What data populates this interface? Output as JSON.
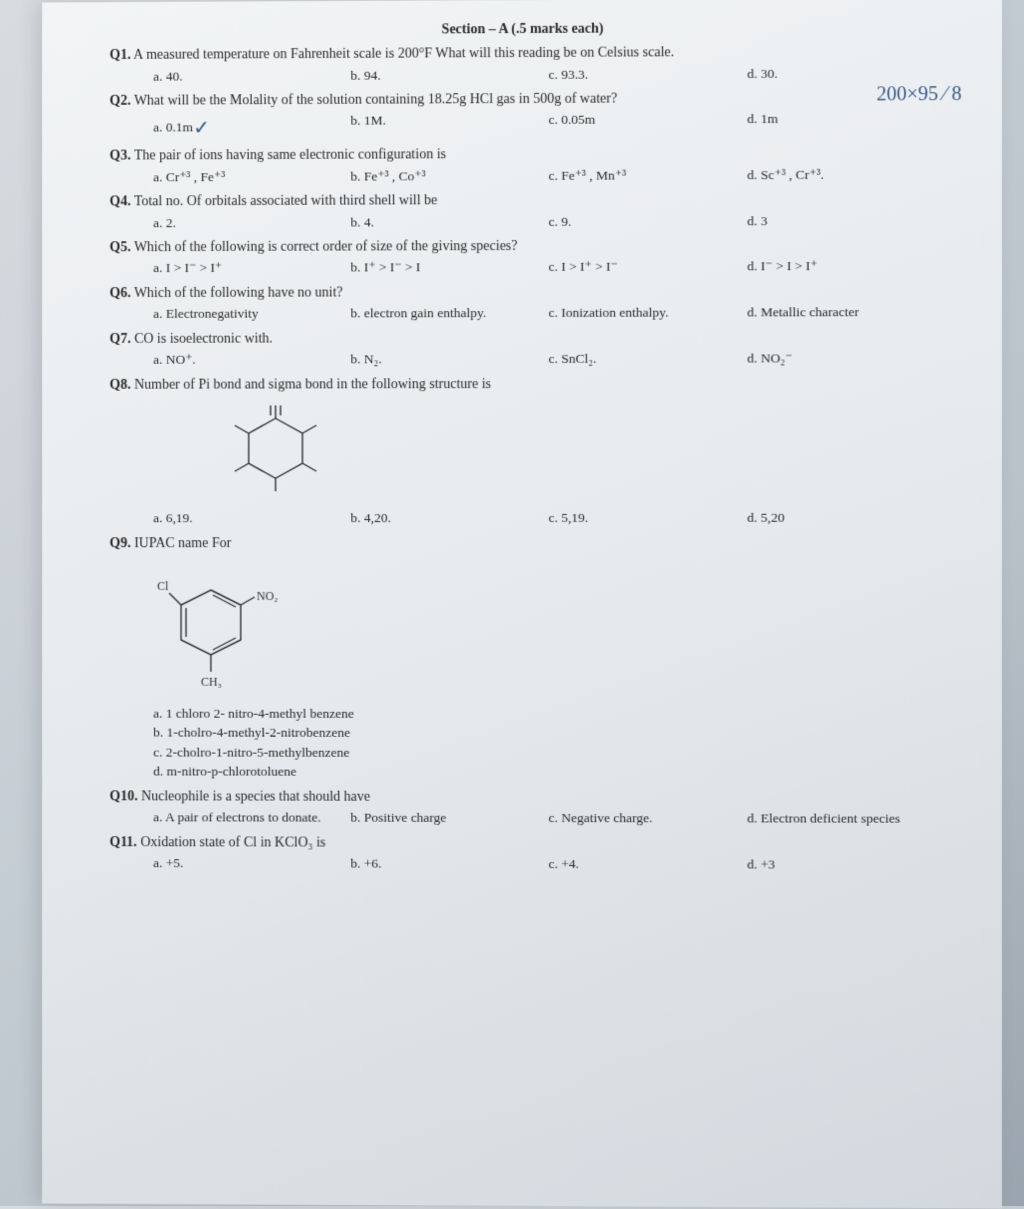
{
  "section_heading": "Section – A (.5 marks each)",
  "handwritten_note": "200×95 ⁄ 8",
  "questions": [
    {
      "num": "Q1.",
      "stem": "A measured temperature on Fahrenheit scale is 200°F What will this reading be on Celsius scale.",
      "opts": [
        "a.  40.",
        "b. 94.",
        "c. 93.3.",
        "d. 30."
      ]
    },
    {
      "num": "Q2.",
      "stem": "What will be the Molality of the solution containing 18.25g HCl gas in 500g of water?",
      "opts": [
        "a.  0.1m",
        "b. 1M.",
        "c. 0.05m",
        "d. 1m"
      ],
      "tick_after_opt": 0
    },
    {
      "num": "Q3.",
      "stem": "The pair of ions having same electronic configuration is",
      "opts": [
        "a.  Cr⁺³ , Fe⁺³",
        "b. Fe⁺³ , Co⁺³",
        "c. Fe⁺³ , Mn⁺³",
        "d. Sc⁺³ , Cr⁺³."
      ]
    },
    {
      "num": "Q4.",
      "stem": "Total no. Of orbitals associated with third shell will be",
      "opts": [
        "a.  2.",
        "b. 4.",
        "c. 9.",
        "d. 3"
      ]
    },
    {
      "num": "Q5.",
      "stem": "Which of the following is correct order of size of the giving species?",
      "opts": [
        "a.  I > I⁻ > I⁺",
        "b. I⁺ > I⁻ > I",
        "c. I > I⁺ > I⁻",
        "d. I⁻ > I > I⁺"
      ]
    },
    {
      "num": "Q6.",
      "stem": "Which of the following have no unit?",
      "opts": [
        "a.  Electronegativity",
        "b. electron gain enthalpy.",
        "c. Ionization enthalpy.",
        "d. Metallic character"
      ]
    },
    {
      "num": "Q7.",
      "stem": "CO is isoelectronic with.",
      "opts": [
        "a.  NO⁺.",
        "b. N₂.",
        "c. SnCl₂.",
        "d. NO₂⁻"
      ]
    },
    {
      "num": "Q8.",
      "stem": "Number of Pi bond and sigma bond in the following structure is",
      "opts": [
        "a.  6,19.",
        "b. 4,20.",
        "c. 5,19.",
        "d. 5,20"
      ],
      "has_image1": true
    },
    {
      "num": "Q9.",
      "stem": "IUPAC name For",
      "opts_stacked": true,
      "opts": [
        "a.  1 chloro 2- nitro-4-methyl benzene",
        "b.  1-cholro-4-methyl-2-nitrobenzene",
        "c.  2-cholro-1-nitro-5-methylbenzene",
        "d.  m-nitro-p-chlorotoluene"
      ],
      "has_image2": true,
      "img2_labels": {
        "cl": "Cl",
        "no2": "NO₂",
        "ch3": "CH₃"
      }
    },
    {
      "num": "Q10.",
      "stem": "Nucleophile is a species that should have",
      "opts": [
        "a.  A pair of electrons to donate.",
        "b. Positive charge",
        "c. Negative charge.",
        "d. Electron deficient species"
      ]
    },
    {
      "num": "Q11.",
      "stem": "Oxidation state of Cl in KClO₃ is",
      "opts": [
        "a.  +5.",
        "b. +6.",
        "c. +4.",
        "d. +3"
      ]
    }
  ],
  "styles": {
    "page_bg_start": "#f2f4f5",
    "page_bg_end": "#d2d8dd",
    "text_color": "#2a2a2a",
    "hand_color": "#3a5a8a",
    "base_font_pt": 14
  }
}
